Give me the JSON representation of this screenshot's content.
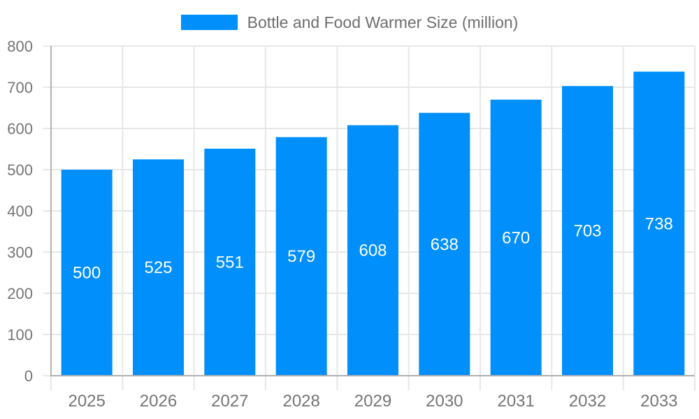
{
  "legend": {
    "position": "top",
    "items": [
      {
        "label": "Bottle and Food Warmer Size (million)",
        "color": "#008FFB"
      }
    ]
  },
  "chart_data": {
    "type": "bar",
    "title": "Bottle and Food Warmer Size (million)",
    "categories": [
      "2025",
      "2026",
      "2027",
      "2028",
      "2029",
      "2030",
      "2031",
      "2032",
      "2033"
    ],
    "series": [
      {
        "name": "Bottle and Food Warmer Size (million)",
        "color": "#008FFB",
        "values": [
          500,
          525,
          551,
          579,
          608,
          638,
          670,
          703,
          738
        ]
      }
    ],
    "xlabel": "",
    "ylabel": "",
    "ylim": [
      0,
      800
    ],
    "ytick_step": 100,
    "yticks": [
      0,
      100,
      200,
      300,
      400,
      500,
      600,
      700,
      800
    ],
    "grid": true,
    "data_labels": true,
    "legend_position": "top",
    "colors": {
      "bar": "#008FFB",
      "data_label": "#FFFFFF",
      "axis_label": "#757575",
      "legend_text": "#6E6E6E",
      "gridline": "#E7E7E7",
      "axis_line": "#B0B0B0",
      "background": "#FFFFFF"
    }
  }
}
